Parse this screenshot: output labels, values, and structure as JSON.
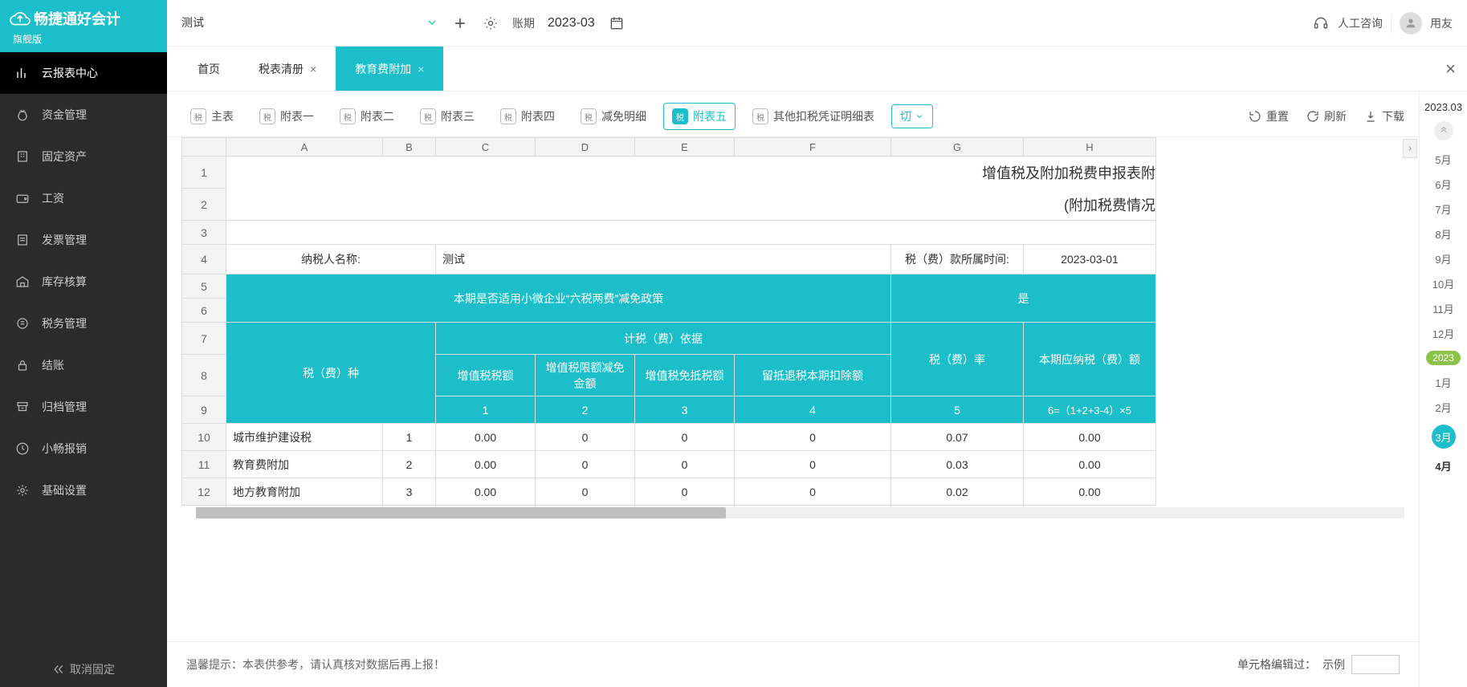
{
  "brand": {
    "title": "畅捷通好会计",
    "edition": "旗舰版"
  },
  "sidebar": {
    "items": [
      {
        "label": "云报表中心"
      },
      {
        "label": "资金管理"
      },
      {
        "label": "固定资产"
      },
      {
        "label": "工资"
      },
      {
        "label": "发票管理"
      },
      {
        "label": "库存核算"
      },
      {
        "label": "税务管理"
      },
      {
        "label": "结账"
      },
      {
        "label": "归档管理"
      },
      {
        "label": "小畅报销"
      },
      {
        "label": "基础设置"
      }
    ],
    "pin": "取消固定"
  },
  "topbar": {
    "company": "测试",
    "period_label": "账期",
    "period_value": "2023-03",
    "consult": "人工咨询",
    "username": "用友"
  },
  "tabs": {
    "items": [
      {
        "label": "首页",
        "closable": false,
        "active": false
      },
      {
        "label": "税表清册",
        "closable": true,
        "active": false
      },
      {
        "label": "教育费附加",
        "closable": true,
        "active": true
      }
    ]
  },
  "subtabs": {
    "items": [
      {
        "label": "主表"
      },
      {
        "label": "附表一"
      },
      {
        "label": "附表二"
      },
      {
        "label": "附表三"
      },
      {
        "label": "附表四"
      },
      {
        "label": "减免明细"
      },
      {
        "label": "附表五"
      },
      {
        "label": "其他扣税凭证明细表"
      }
    ],
    "active_index": 6,
    "switch": "切"
  },
  "actions": {
    "reset": "重置",
    "refresh": "刷新",
    "download": "下载"
  },
  "sheet": {
    "columns": [
      "A",
      "B",
      "C",
      "D",
      "E",
      "F",
      "G",
      "H"
    ],
    "title1": "增值税及附加税费申报表附",
    "title2": "(附加税费情况",
    "taxpayer_label": "纳税人名称:",
    "taxpayer_value": "测试",
    "period_owed_label": "税（费）款所属时间:",
    "period_owed_value": "2023-03-01",
    "policy_question": "本期是否适用小微企业“六税两费”减免政策",
    "policy_answer": "是",
    "h_tax_kind": "税（费）种",
    "h_basis": "计税（费）依据",
    "h_vat_amount": "增值税税额",
    "h_vat_limit": "增值税限额减免金额",
    "h_vat_exempt": "增值税免抵税额",
    "h_refund": "留抵退税本期扣除额",
    "h_rate": "税（费）率",
    "h_payable": "本期应纳税（费）额",
    "n1": "1",
    "n2": "2",
    "n3": "3",
    "n4": "4",
    "n5": "5",
    "n6": "6=（1+2+3-4）×5",
    "rows": [
      {
        "r": "10",
        "name": "城市维护建设税",
        "idx": "1",
        "c1": "0.00",
        "c2": "0",
        "c3": "0",
        "c4": "0",
        "rate": "0.07",
        "pay": "0.00"
      },
      {
        "r": "11",
        "name": "教育费附加",
        "idx": "2",
        "c1": "0.00",
        "c2": "0",
        "c3": "0",
        "c4": "0",
        "rate": "0.03",
        "pay": "0.00"
      },
      {
        "r": "12",
        "name": "地方教育附加",
        "idx": "3",
        "c1": "0.00",
        "c2": "0",
        "c3": "0",
        "c4": "0",
        "rate": "0.02",
        "pay": "0.00"
      }
    ]
  },
  "footer": {
    "tip": "温馨提示：本表供参考，请认真核对数据后再上报！",
    "edited_label": "单元格编辑过：",
    "example": "示例"
  },
  "timeline": {
    "head": "2023.03",
    "year_badge": "2023",
    "months_top": [
      "5月",
      "6月",
      "7月",
      "8月",
      "9月",
      "10月",
      "11月",
      "12月"
    ],
    "months_bottom": [
      "1月",
      "2月"
    ],
    "current": "3月",
    "after": "4月"
  },
  "colors": {
    "teal": "#1cbfc9",
    "green": "#8bc34a"
  }
}
